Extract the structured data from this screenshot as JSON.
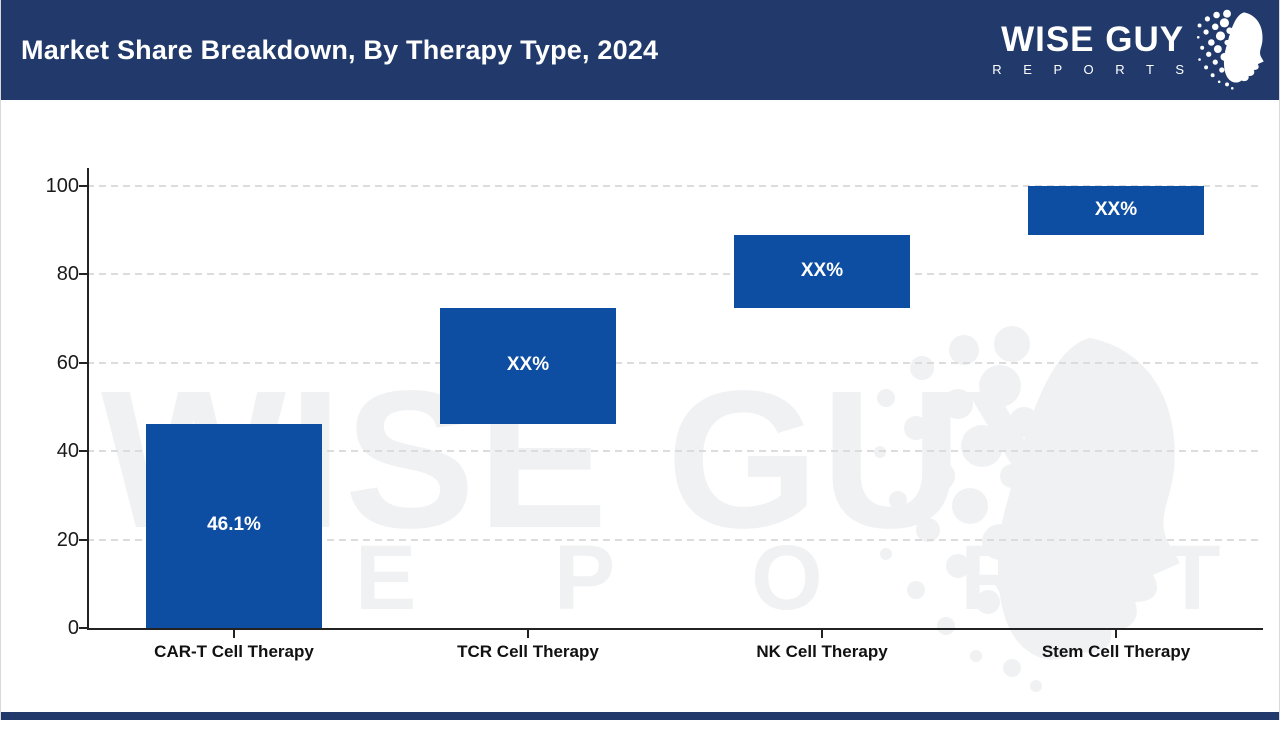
{
  "header": {
    "title": "Market Share Breakdown, By Therapy Type, 2024",
    "logo": {
      "wordmark": "WISE GUY",
      "subtext": "R E P O R T S"
    }
  },
  "watermark": {
    "line1": "WISE GUY",
    "line2": "R E P O R T S"
  },
  "chart_data": {
    "type": "bar",
    "subtype": "waterfall",
    "title": "Market Share Breakdown, By Therapy Type, 2024",
    "categories": [
      "CAR-T Cell Therapy",
      "TCR Cell Therapy",
      "NK Cell Therapy",
      "Stem Cell Therapy"
    ],
    "segments": [
      {
        "category": "CAR-T Cell Therapy",
        "start": 0,
        "end": 46.1,
        "label": "46.1%"
      },
      {
        "category": "TCR Cell Therapy",
        "start": 46.1,
        "end": 72.3,
        "label": "XX%"
      },
      {
        "category": "NK Cell Therapy",
        "start": 72.3,
        "end": 88.9,
        "label": "XX%"
      },
      {
        "category": "Stem Cell Therapy",
        "start": 88.9,
        "end": 100,
        "label": "XX%"
      }
    ],
    "ylim": [
      0,
      100
    ],
    "yticks": [
      0,
      20,
      40,
      60,
      80,
      100
    ],
    "xlabel": "",
    "ylabel": "",
    "grid": "horizontal-dashed",
    "legend": "none"
  },
  "colors": {
    "header_bg": "#213a6b",
    "footer_bg": "#213a6b",
    "page_bg": "#ffffff",
    "bar": "#0d4da2",
    "bar_label": "#ffffff",
    "grid": "#dcdcdc",
    "axis": "#222222",
    "tick_label": "#1a1a1a",
    "category_label": "#111111",
    "watermark": "#f0f1f3",
    "logo_text": "#ffffff"
  }
}
